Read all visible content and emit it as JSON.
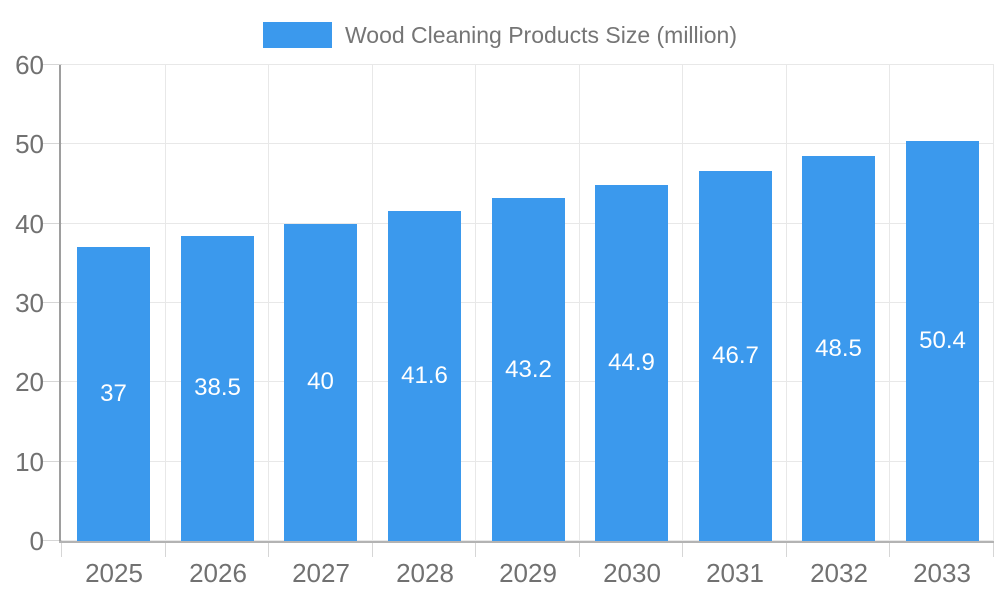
{
  "legend": {
    "label": "Wood Cleaning Products Size (million)"
  },
  "chart_data": {
    "type": "bar",
    "title": "Wood Cleaning Products Size (million)",
    "categories": [
      "2025",
      "2026",
      "2027",
      "2028",
      "2029",
      "2030",
      "2031",
      "2032",
      "2033"
    ],
    "values": [
      37,
      38.5,
      40,
      41.6,
      43.2,
      44.9,
      46.7,
      48.5,
      50.4
    ],
    "xlabel": "",
    "ylabel": "",
    "ylim": [
      0,
      60
    ],
    "y_ticks": [
      0,
      10,
      20,
      30,
      40,
      50,
      60
    ],
    "grid": true,
    "legend_position": "top",
    "value_label_position": "inside-center",
    "colors": {
      "bar": "#3B99ED",
      "value_label": "#FFFFFF",
      "axis_text": "#717171",
      "legend_text": "#757575",
      "gridline": "#E8E8E8",
      "tick": "#D6D6D6",
      "y_axis_line": "#9E9E9E",
      "x_axis_line": "#B3B3B3",
      "background": "#FFFFFF"
    }
  }
}
